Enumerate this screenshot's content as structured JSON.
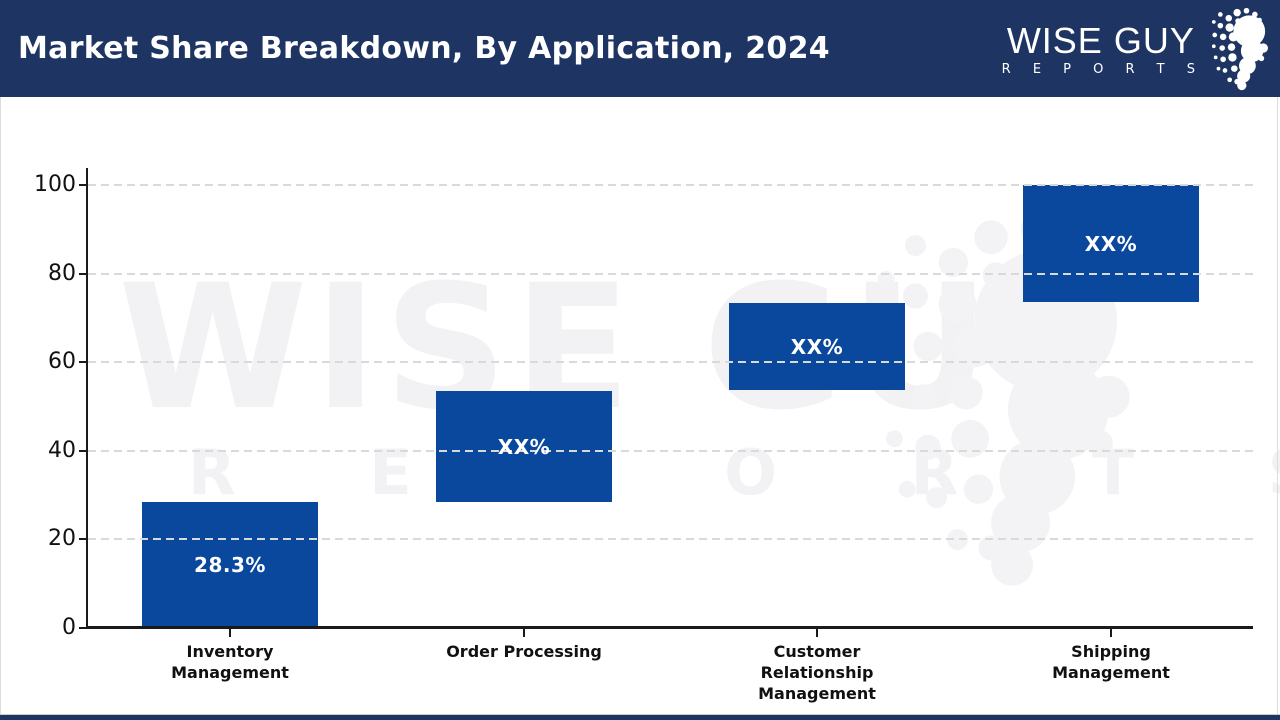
{
  "header": {
    "title": "Market Share Breakdown, By Application, 2024",
    "bg_color": "#1e3563",
    "logo": {
      "line1": "WISE GUY",
      "line2": "R E P O R T S"
    }
  },
  "watermark": {
    "line1": "WISE GUY",
    "line2": "R E P O R T S",
    "color": "#f2f2f4"
  },
  "chart_data": {
    "type": "bar",
    "subtype": "waterfall",
    "title": "Market Share Breakdown, By Application, 2024",
    "categories": [
      "Inventory\nManagement",
      "Order Processing",
      "Customer\nRelationship\nManagement",
      "Shipping\nManagement"
    ],
    "series": [
      {
        "name": "Market Share %",
        "bases": [
          0,
          28.3,
          53.6,
          73.5
        ],
        "tops": [
          28.3,
          53.4,
          73.3,
          100
        ]
      }
    ],
    "bar_labels": [
      "28.3%",
      "XX%",
      "XX%",
      "XX%"
    ],
    "xlabel": "",
    "ylabel": "",
    "ylim": [
      0,
      100
    ],
    "yticks": [
      0,
      20,
      40,
      60,
      80,
      100
    ],
    "grid": "horizontal-dashed",
    "legend": "none",
    "bar_color": "#0a489e",
    "bar_label_color": "#ffffff",
    "gridline_color": "#d9d9d9",
    "axis_color": "#1a1a1a"
  },
  "footer": {
    "bg_color": "#1e3563"
  }
}
